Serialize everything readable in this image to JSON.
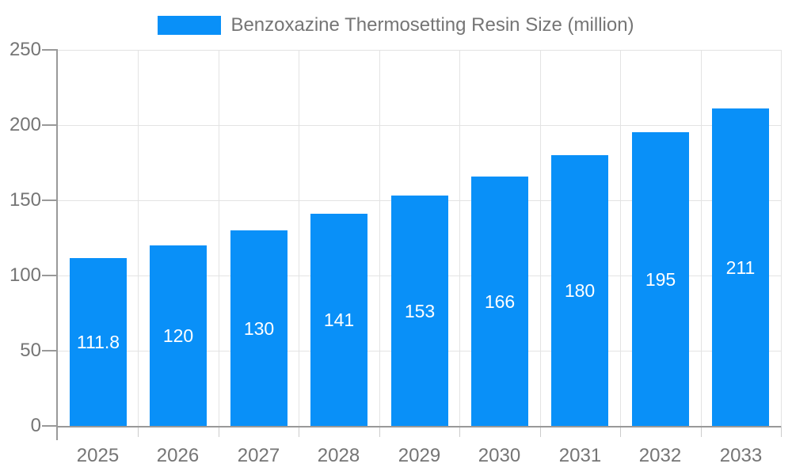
{
  "legend": {
    "label": "Benzoxazine Thermosetting Resin Size (million)"
  },
  "colors": {
    "bar": "#0990f8",
    "axis_text": "#757575",
    "grid_line": "#e3e3e3",
    "axis_line": "#999999",
    "minor_tick": "#cccccc",
    "value_label": "#ffffff",
    "background": "#ffffff"
  },
  "chart_data": {
    "type": "bar",
    "title": "Benzoxazine Thermosetting Resin Size (million)",
    "categories": [
      "2025",
      "2026",
      "2027",
      "2028",
      "2029",
      "2030",
      "2031",
      "2032",
      "2033"
    ],
    "values": [
      111.8,
      120,
      130,
      141,
      153,
      166,
      180,
      195,
      211
    ],
    "value_labels": [
      "111.8",
      "120",
      "130",
      "141",
      "153",
      "166",
      "180",
      "195",
      "211"
    ],
    "xlabel": "",
    "ylabel": "",
    "ylim": [
      0,
      250
    ],
    "yticks": [
      0,
      50,
      100,
      150,
      200,
      250
    ],
    "grid": "on",
    "legend_position": "top-center",
    "value_label_position": "inside-center"
  }
}
